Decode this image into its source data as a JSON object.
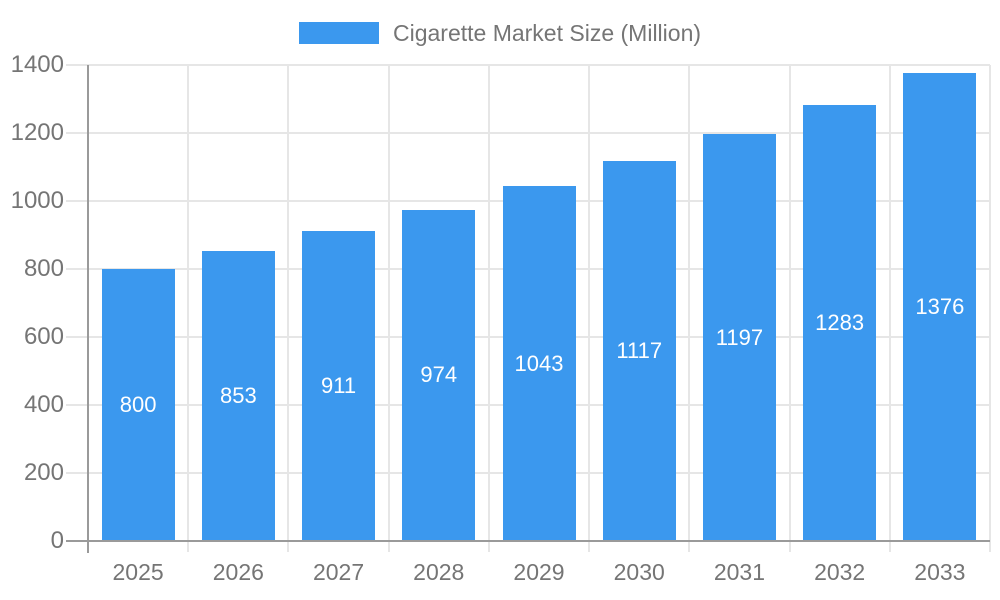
{
  "chart_data": {
    "type": "bar",
    "title": "Cigarette Market Size (Million)",
    "legend_position": "top",
    "categories": [
      "2025",
      "2026",
      "2027",
      "2028",
      "2029",
      "2030",
      "2031",
      "2032",
      "2033"
    ],
    "values": [
      800,
      853,
      911,
      974,
      1043,
      1117,
      1197,
      1283,
      1376
    ],
    "value_labels": [
      "800",
      "853",
      "911",
      "974",
      "1043",
      "1117",
      "1197",
      "1283",
      "1376"
    ],
    "xlabel": "",
    "ylabel": "",
    "ylim": [
      0,
      1400
    ],
    "yticks": [
      0,
      200,
      400,
      600,
      800,
      1000,
      1200,
      1400
    ],
    "grid": true,
    "colors": {
      "bar": "#3b98ee",
      "bar_value_text": "#ffffff",
      "axis_text": "#757575",
      "grid_line": "#e6e6e6",
      "axis_line": "#9a9a9a",
      "background": "#ffffff"
    }
  }
}
